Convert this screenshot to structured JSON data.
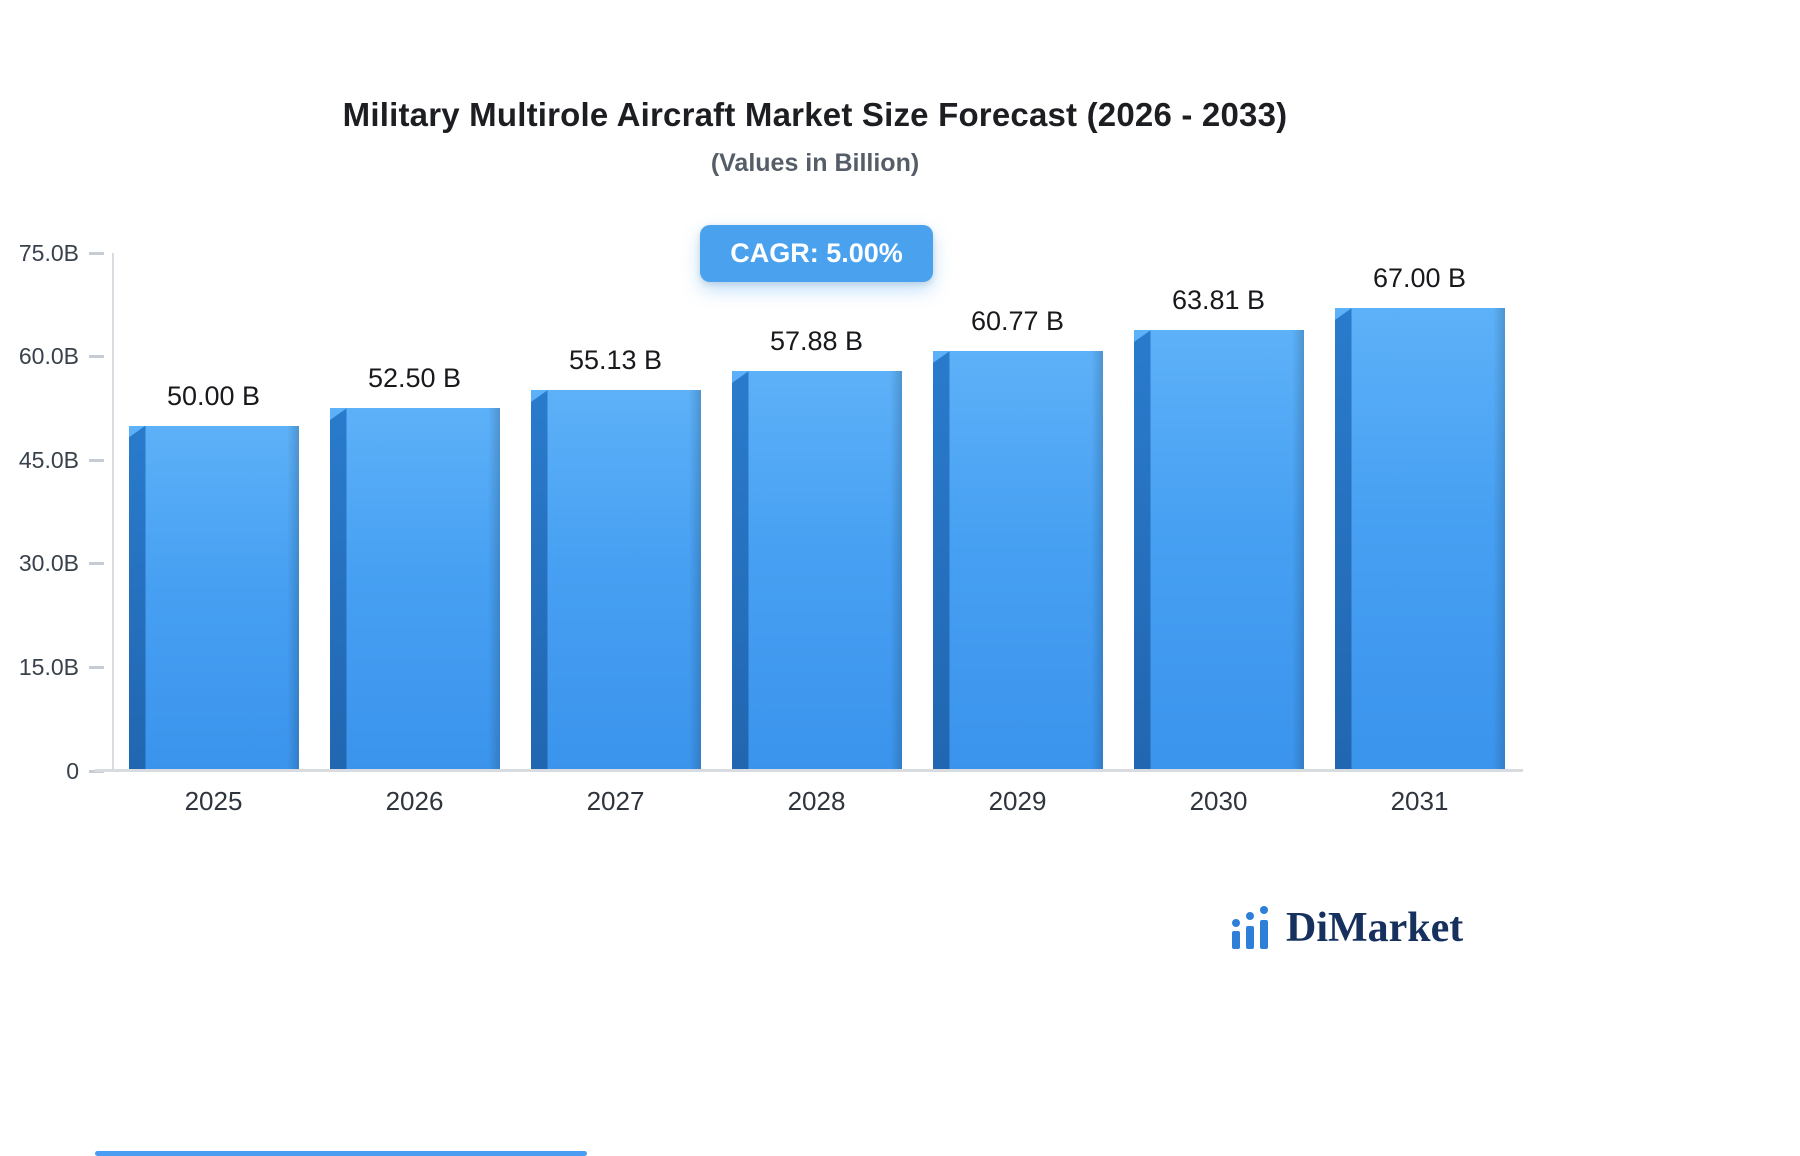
{
  "header": {
    "title": "Military Multirole Aircraft Market Size Forecast (2026 - 2033)",
    "subtitle": "(Values in Billion)"
  },
  "badge": {
    "label": "CAGR: 5.00%"
  },
  "chart_data": {
    "type": "bar",
    "title": "Military Multirole Aircraft Market Size Forecast (2026 - 2033)",
    "subtitle": "(Values in Billion)",
    "categories": [
      "2025",
      "2026",
      "2027",
      "2028",
      "2029",
      "2030",
      "2031"
    ],
    "values": [
      50.0,
      52.5,
      55.13,
      57.88,
      60.77,
      63.81,
      67.0
    ],
    "bar_labels": [
      "50.00 B",
      "52.50 B",
      "55.13 B",
      "57.88 B",
      "60.77 B",
      "63.81 B",
      "67.00 B"
    ],
    "xlabel": "",
    "ylabel": "",
    "ylim": [
      0,
      75
    ],
    "y_ticks": [
      {
        "label": "75.0B",
        "value": 75
      },
      {
        "label": "60.0B",
        "value": 60
      },
      {
        "label": "45.0B",
        "value": 45
      },
      {
        "label": "30.0B",
        "value": 30
      },
      {
        "label": "15.0B",
        "value": 15
      },
      {
        "label": "0",
        "value": 0
      }
    ],
    "legend": null,
    "grid": false,
    "bar_color": "#47a0f2",
    "bar_side_color": "#2a7bcd",
    "axis_color": "#d8dbdf"
  },
  "logo": {
    "text": "DiMarket",
    "icon": "mini-bar-chart-icon",
    "color": "#2d7fd8"
  }
}
